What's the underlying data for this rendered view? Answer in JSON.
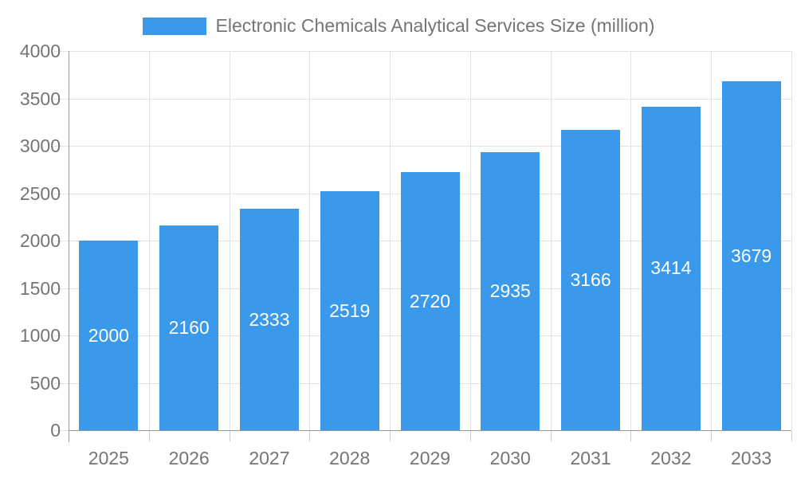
{
  "legend": {
    "label": "Electronic Chemicals Analytical Services Size (million)"
  },
  "colors": {
    "background": "#FFFFFF",
    "bar": "#3B99EC",
    "grid": "#E2E2E2",
    "axis": "#999999",
    "tick_label": "#757575",
    "bar_label": "#FFFFFF"
  },
  "chart_data": {
    "type": "bar",
    "title": "Electronic Chemicals Analytical Services Size (million)",
    "series_name": "Electronic Chemicals Analytical Services Size (million)",
    "categories": [
      "2025",
      "2026",
      "2027",
      "2028",
      "2029",
      "2030",
      "2031",
      "2032",
      "2033"
    ],
    "values": [
      2000,
      2160,
      2333,
      2519,
      2720,
      2935,
      3166,
      3414,
      3679
    ],
    "xlabel": "",
    "ylabel": "",
    "ylim": [
      0,
      4000
    ],
    "yticks": [
      0,
      500,
      1000,
      1500,
      2000,
      2500,
      3000,
      3500,
      4000
    ],
    "grid": true,
    "legend_position": "top-center",
    "bar_value_labels_visible": true
  }
}
